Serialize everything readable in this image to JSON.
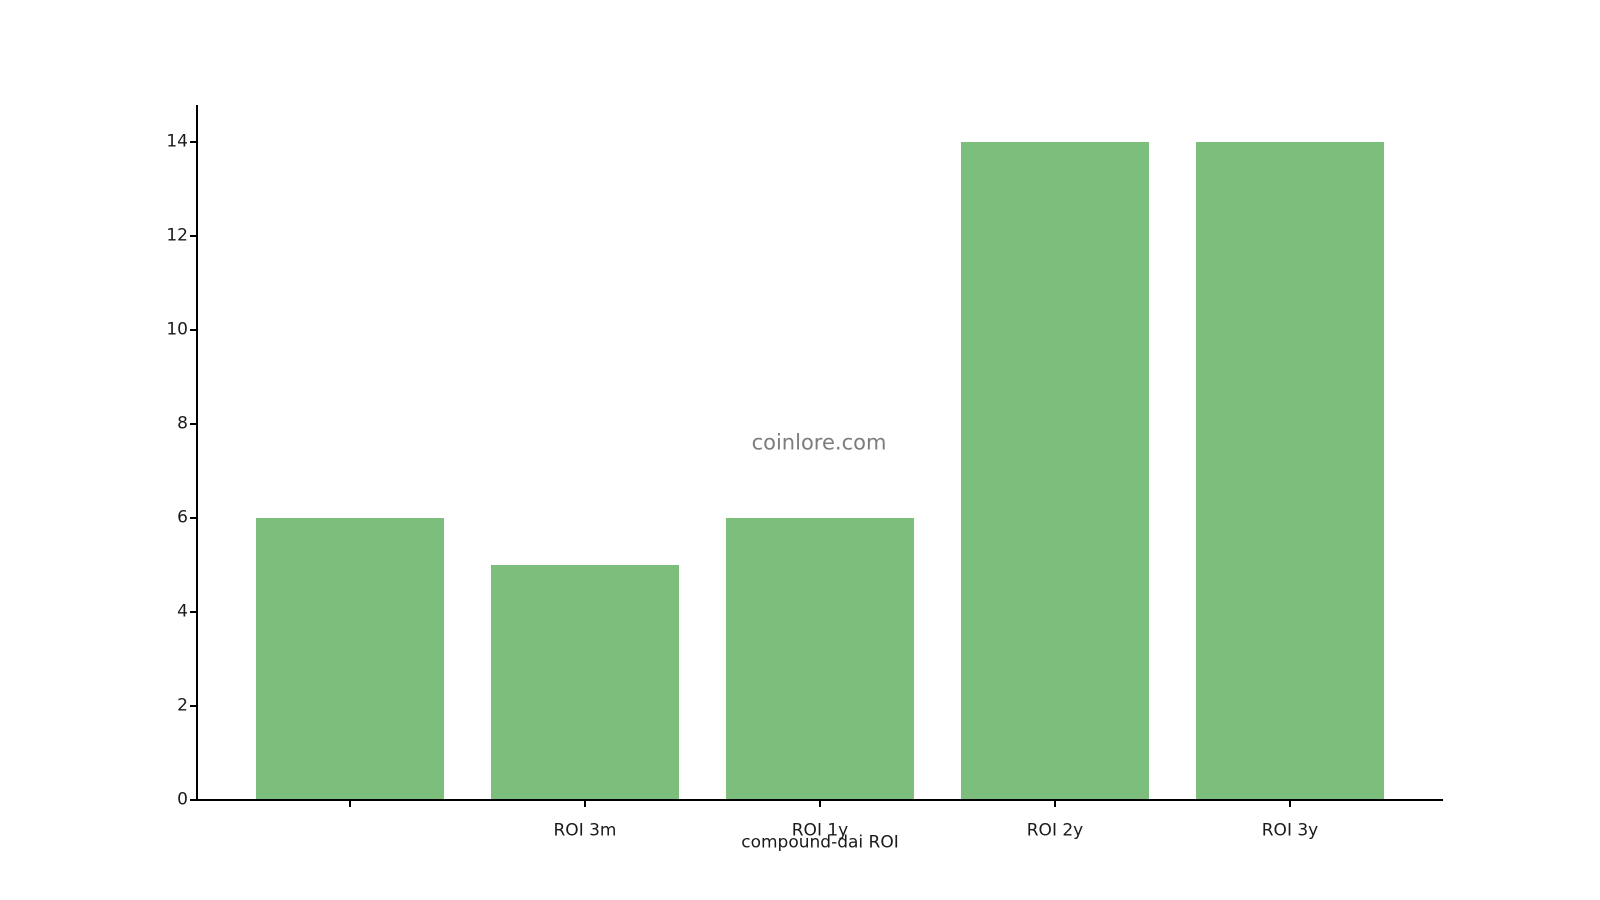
{
  "watermark": "coinlore.com",
  "chart_data": {
    "type": "bar",
    "categories": [
      "",
      "ROI 3m",
      "ROI 1y",
      "ROI 2y",
      "ROI 3y"
    ],
    "values": [
      6,
      5,
      6,
      14,
      14
    ],
    "xlabel": "compound-dai ROI",
    "ylabel": "",
    "yticks": [
      0,
      2,
      4,
      6,
      8,
      10,
      12,
      14
    ],
    "ylim": [
      0,
      14.8
    ],
    "grid": false,
    "legend": null,
    "colors": {
      "bar": "#7cbf7d",
      "axis": "#000000",
      "tick_label": "#1a1a1a",
      "watermark": "#7d7d7d",
      "background": "#ffffff"
    }
  }
}
